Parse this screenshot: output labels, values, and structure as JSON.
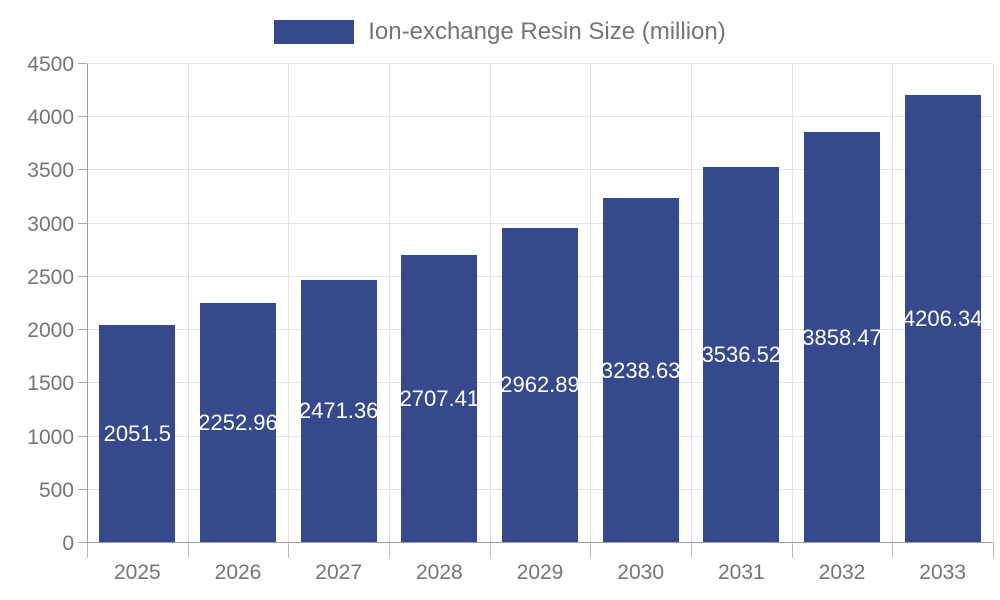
{
  "legend": {
    "label": "Ion-exchange Resin Size (million)"
  },
  "chart_data": {
    "type": "bar",
    "title": "",
    "xlabel": "",
    "ylabel": "",
    "categories": [
      "2025",
      "2026",
      "2027",
      "2028",
      "2029",
      "2030",
      "2031",
      "2032",
      "2033"
    ],
    "values": [
      2051.5,
      2252.96,
      2471.36,
      2707.41,
      2962.89,
      3238.63,
      3536.52,
      3858.47,
      4206.34
    ],
    "bar_labels": [
      "2051.5",
      "2252.96",
      "2471.36",
      "2707.41",
      "2962.89",
      "3238.63",
      "3536.52",
      "3858.47",
      "4206.34"
    ],
    "ylim": [
      0,
      4500
    ],
    "ytick_step": 500,
    "ytick_labels": [
      "0",
      "500",
      "1000",
      "1500",
      "2000",
      "2500",
      "3000",
      "3500",
      "4000",
      "4500"
    ],
    "grid": true,
    "legend_position": "top-center",
    "series_name": "Ion-exchange Resin Size (million)",
    "colors": {
      "bar": "#36498C",
      "bar_label_text": "#FFFFFF",
      "grid_line": "#E3E3E3",
      "axis_line": "#9E9E9E",
      "tick_label_text": "#757575",
      "legend_text": "#757575",
      "background": "#FFFFFF"
    }
  }
}
